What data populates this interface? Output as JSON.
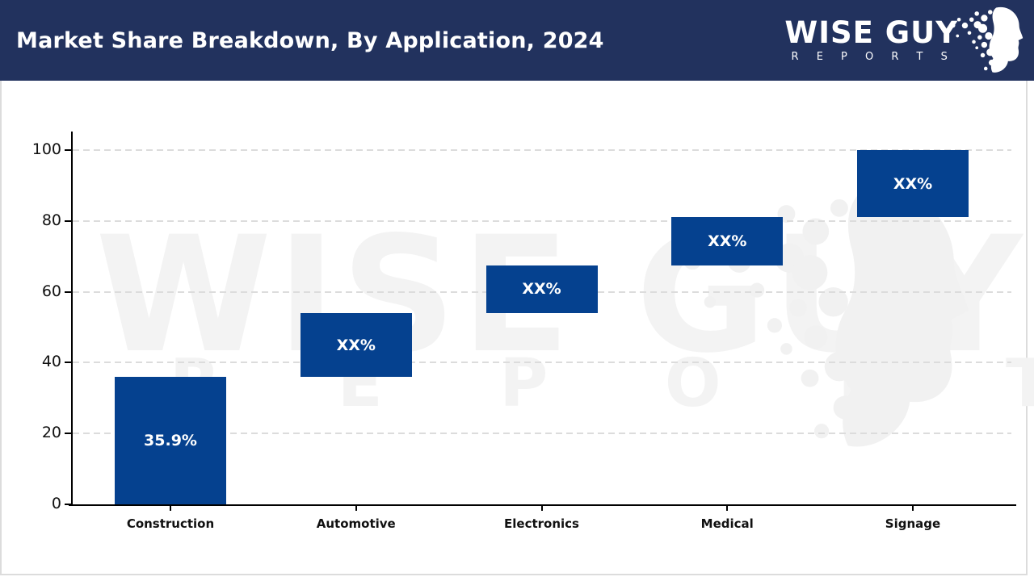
{
  "header": {
    "title": "Market Share Breakdown, By Application, 2024",
    "logo": {
      "brand": "WISE GUY",
      "sub": "R E P O R T S"
    }
  },
  "watermark": {
    "brand": "WISE GUY",
    "sub": "R E P O R T S"
  },
  "colors": {
    "header_bg": "#22325e",
    "bar": "#05418f",
    "grid": "#dcdcdc",
    "axis": "#000000",
    "value_label": "#ffffff",
    "watermark": "#f3f3f3"
  },
  "chart_data": {
    "type": "bar",
    "subtype": "waterfall",
    "title": "Market Share Breakdown, By Application, 2024",
    "categories": [
      "Construction",
      "Automotive",
      "Electronics",
      "Medical",
      "Signage"
    ],
    "segments": [
      {
        "category": "Construction",
        "start": 0,
        "end": 35.9,
        "value": 35.9,
        "label": "35.9%"
      },
      {
        "category": "Automotive",
        "start": 35.9,
        "end": 54.0,
        "value": 18.1,
        "label": "XX%"
      },
      {
        "category": "Electronics",
        "start": 54.0,
        "end": 67.5,
        "value": 13.5,
        "label": "XX%"
      },
      {
        "category": "Medical",
        "start": 67.5,
        "end": 81.0,
        "value": 13.5,
        "label": "XX%"
      },
      {
        "category": "Signage",
        "start": 81.0,
        "end": 100.0,
        "value": 19.0,
        "label": "XX%"
      }
    ],
    "xlabel": "",
    "ylabel": "",
    "ylim": [
      0,
      100
    ],
    "yticks": [
      0,
      20,
      40,
      60,
      80,
      100
    ],
    "grid": "horizontal-dashed",
    "legend": "none",
    "bar_color": "#05418f"
  }
}
